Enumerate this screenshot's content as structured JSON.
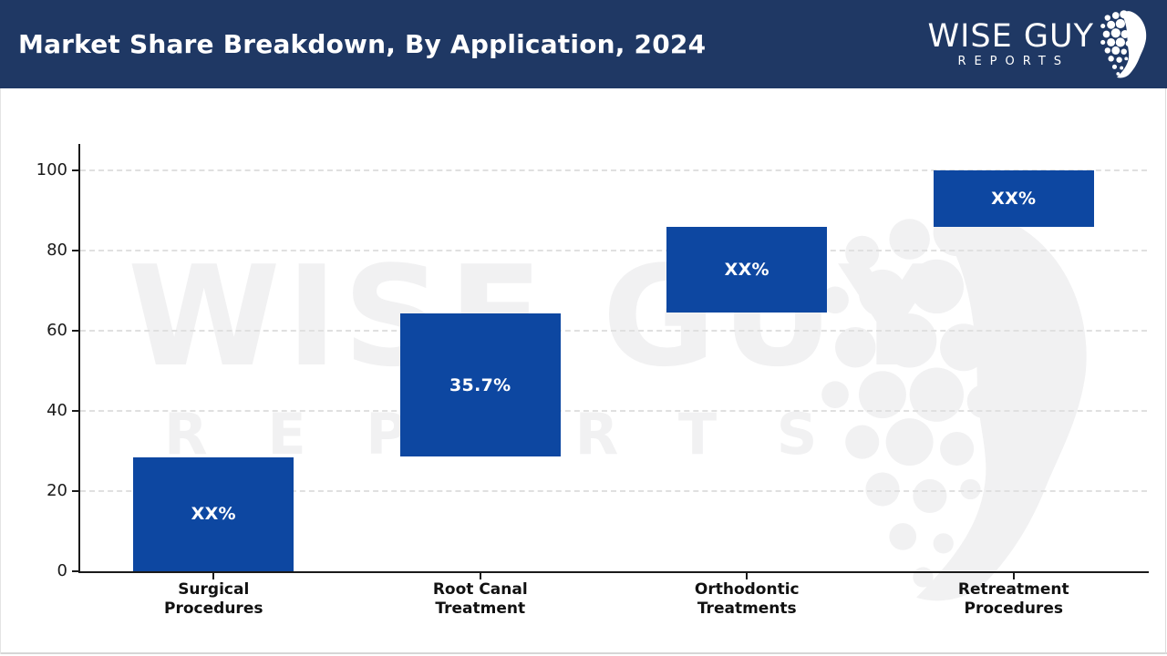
{
  "header": {
    "title": "Market Share Breakdown, By Application, 2024",
    "logo": {
      "line1": "WISE GUY",
      "line2": "REPORTS"
    },
    "bg_color": "#1f3864",
    "text_color": "#ffffff"
  },
  "watermark": {
    "line1": "WISE GUY",
    "line2": "R E P O R T S"
  },
  "chart_data": {
    "type": "bar",
    "variant": "floating-waterfall",
    "title": "Market Share Breakdown, By Application, 2024",
    "categories": [
      [
        "Surgical",
        "Procedures"
      ],
      [
        "Root Canal",
        "Treatment"
      ],
      [
        "Orthodontic",
        "Treatments"
      ],
      [
        "Retreatment",
        "Procedures"
      ]
    ],
    "series": [
      {
        "name": "Market Share (%)",
        "segments": [
          {
            "category": "Surgical Procedures",
            "start": 0,
            "end": 28.5,
            "label": "XX%"
          },
          {
            "category": "Root Canal Treatment",
            "start": 28.6,
            "end": 64.3,
            "label": "35.7%"
          },
          {
            "category": "Orthodontic Treatments",
            "start": 64.5,
            "end": 85.8,
            "label": "XX%"
          },
          {
            "category": "Retreatment Procedures",
            "start": 86.0,
            "end": 100,
            "label": "XX%"
          }
        ]
      }
    ],
    "xlabel": "",
    "ylabel": "",
    "ylim": [
      0,
      100
    ],
    "yticks": [
      0,
      20,
      40,
      60,
      80,
      100
    ],
    "grid": "horizontal-dashed",
    "legend": "none",
    "bar_color": "#0d47a1",
    "bar_label_color": "#ffffff",
    "axis_color": "#1a1a1a",
    "gridline_color": "#e0e0e0"
  }
}
